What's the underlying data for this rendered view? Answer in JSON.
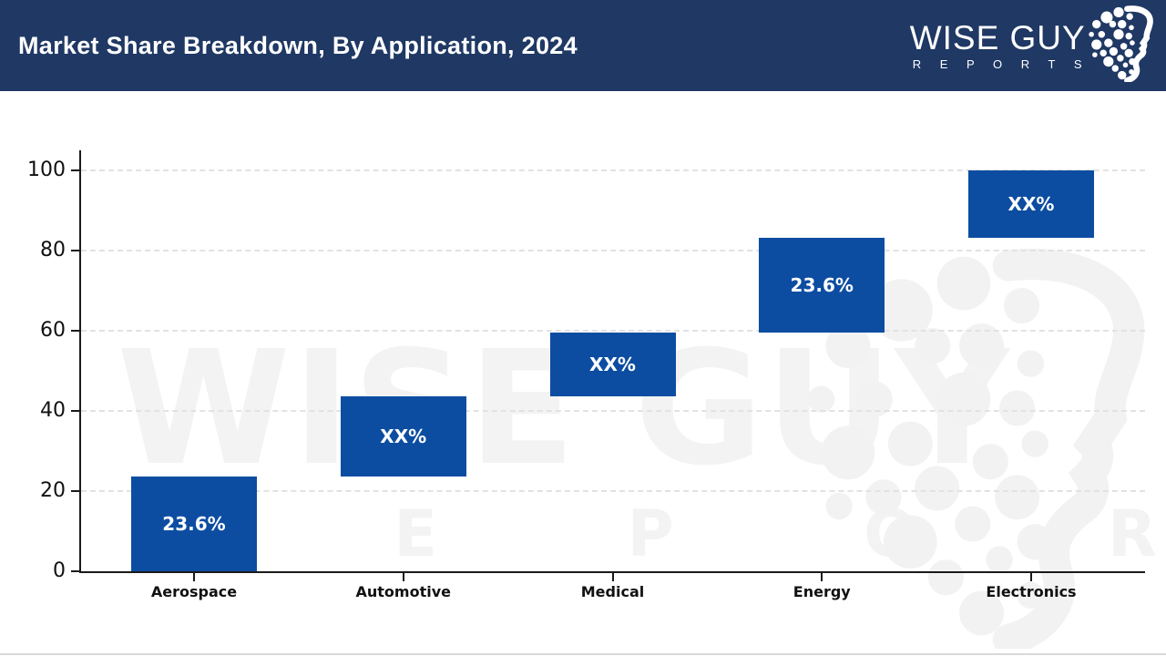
{
  "header": {
    "title": "Market Share Breakdown, By Application, 2024",
    "bg_color": "#1f3864",
    "text_color": "#ffffff",
    "logo": {
      "line1": "WISE GUY",
      "line2": "R E P O R T S"
    }
  },
  "watermark": {
    "line1": "WISE GUY",
    "line2": "R E P O R T S"
  },
  "chart_data": {
    "type": "bar",
    "subtype": "waterfall",
    "title": "Market Share Breakdown, By Application, 2024",
    "categories": [
      "Aerospace",
      "Automotive",
      "Medical",
      "Energy",
      "Electronics"
    ],
    "bars": [
      {
        "category": "Aerospace",
        "start": 0,
        "end": 23.6,
        "label": "23.6%"
      },
      {
        "category": "Automotive",
        "start": 23.6,
        "end": 43.6,
        "label": "XX%"
      },
      {
        "category": "Medical",
        "start": 43.6,
        "end": 59.5,
        "label": "XX%"
      },
      {
        "category": "Energy",
        "start": 59.5,
        "end": 83.1,
        "label": "23.6%"
      },
      {
        "category": "Electronics",
        "start": 83.1,
        "end": 100,
        "label": "XX%"
      }
    ],
    "xlabel": "",
    "ylabel": "",
    "yticks": [
      0,
      20,
      40,
      60,
      80,
      100
    ],
    "ylim": [
      0,
      105
    ],
    "grid": "horizontal-dashed",
    "gridline_color": "#e2e2e2",
    "axis_color": "#1a1a1a",
    "bar_color": "#0c4da2",
    "bar_label_color": "#ffffff",
    "legend": "none"
  },
  "footer": {
    "line_color": "#d9d9d9"
  }
}
